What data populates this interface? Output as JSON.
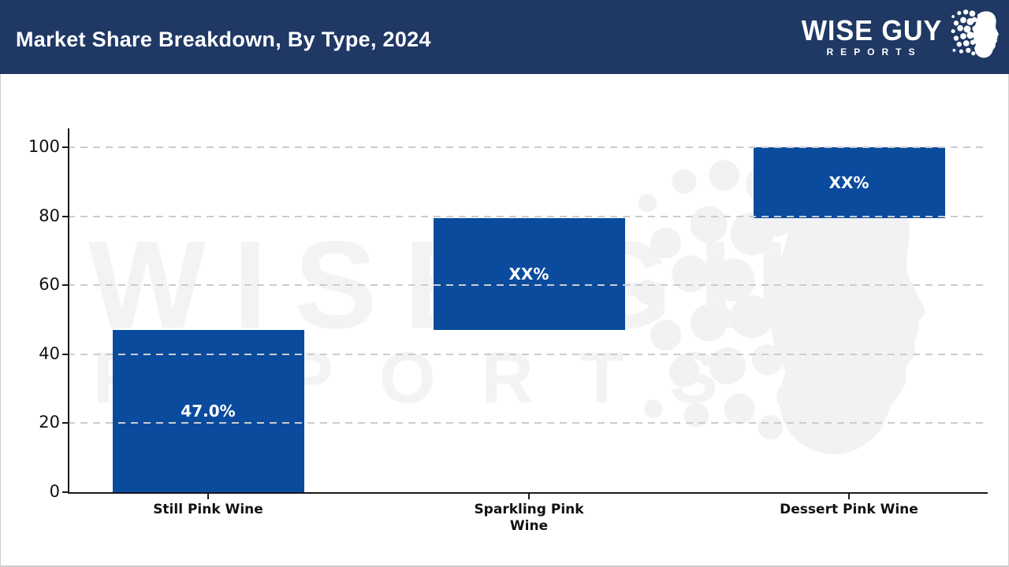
{
  "header": {
    "title": "Market Share Breakdown, By Type, 2024",
    "background_color": "#1f3864",
    "logo": {
      "name": "Wise Guy Reports",
      "line1": "WISE GUY",
      "line2": "REPORTS"
    }
  },
  "watermark": {
    "line1": "WISE GUY",
    "line2": "REPORTS"
  },
  "chart_data": {
    "type": "bar",
    "subtype": "waterfall-segmented",
    "title": "Market Share Breakdown, By Type, 2024",
    "categories": [
      "Still Pink Wine",
      "Sparkling Pink\nWine",
      "Dessert Pink Wine"
    ],
    "series": [
      {
        "name": "Market share (%)",
        "segments": [
          {
            "category": "Still Pink Wine",
            "start": 0,
            "end": 47,
            "label": "47.0%"
          },
          {
            "category": "Sparkling Pink Wine",
            "start": 47,
            "end": 79.5,
            "label": "XX%"
          },
          {
            "category": "Dessert Pink Wine",
            "start": 79.5,
            "end": 100,
            "label": "XX%"
          }
        ]
      }
    ],
    "xlabel": "",
    "ylabel": "",
    "ylim": [
      0,
      100
    ],
    "yticks": [
      0,
      20,
      40,
      60,
      80,
      100
    ],
    "grid": true,
    "gridline_style": "dashed",
    "gridline_color": "#cccccc",
    "bar_color": "#0a4b9e",
    "bar_label_color": "#ffffff",
    "axis_color": "#1a1a1a",
    "tick_label_color": "#111111",
    "legend": "none"
  }
}
